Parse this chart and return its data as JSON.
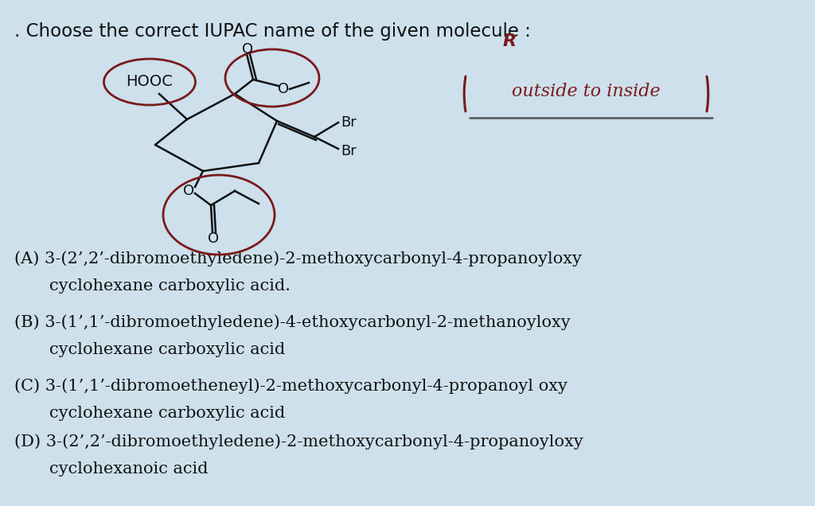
{
  "bg_color": "#cde0ec",
  "text_color": "#111111",
  "dark_red": "#7a1a1a",
  "bond_color": "#111111",
  "title": ". Choose the correct IUPAC name of the given molecule :",
  "annotation_R": "R",
  "annotation_cursive": "outside to inside",
  "options": [
    {
      "label": "(A)",
      "line1": "3-(2’,2’-dibromoethyledene)-2-methoxycarbonyl-4-propanoyloxy",
      "line2": "cyclohexane carboxylic acid."
    },
    {
      "label": "(B)",
      "line1": "3-(1’,1’-dibromoethyledene)-4-ethoxycarbonyl-2-methanoyloxy",
      "line2": "cyclohexane carboxylic acid"
    },
    {
      "label": "(C)",
      "line1": "3-(1’,1’-dibromoetheneyl)-2-methoxycarbonyl-4-propanoyl oxy",
      "line2": "cyclohexane carboxylic acid"
    },
    {
      "label": "(D)",
      "line1": "3-(2’,2’-dibromoethyledene)-2-methoxycarbonyl-4-propanoyloxy",
      "line2": "cyclohexanoic acid"
    }
  ]
}
